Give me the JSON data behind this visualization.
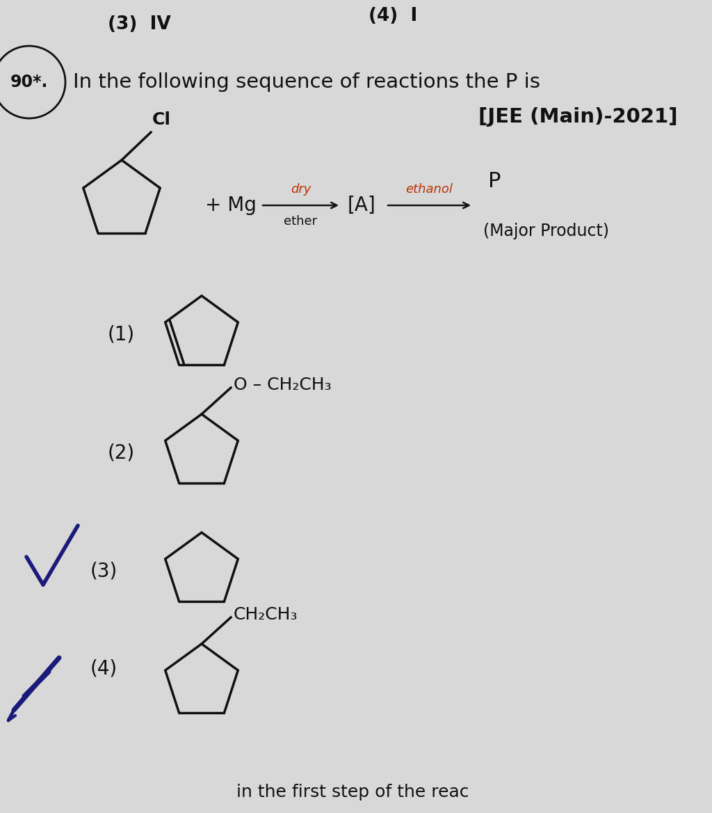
{
  "bg_color": "#d8d8d8",
  "title_top_left": "(3)  IV",
  "title_top_right": "(4)  I",
  "question_num": "90*.",
  "question_text": "In the following sequence of reactions the P is",
  "source": "[JEE (Main)-2021]",
  "reaction_plus_mg": "+ Mg",
  "reaction_dry": "dry",
  "reaction_ether": "ether",
  "reaction_A": "[A]",
  "reaction_ethanol": "ethanol",
  "reaction_P": "P",
  "reaction_major": "(Major Product)",
  "option1_label": "(1)",
  "option2_label": "(2)",
  "option3_label": "(3)",
  "option4_label": "(4)",
  "option2_substituent": "O – CH₂CH₃",
  "option4_substituent": "CH₂CH₃",
  "bottom_text": "in the first step of the reac",
  "dark_blue": "#1a1a7a",
  "black": "#111111",
  "orange_red": "#bb3300"
}
